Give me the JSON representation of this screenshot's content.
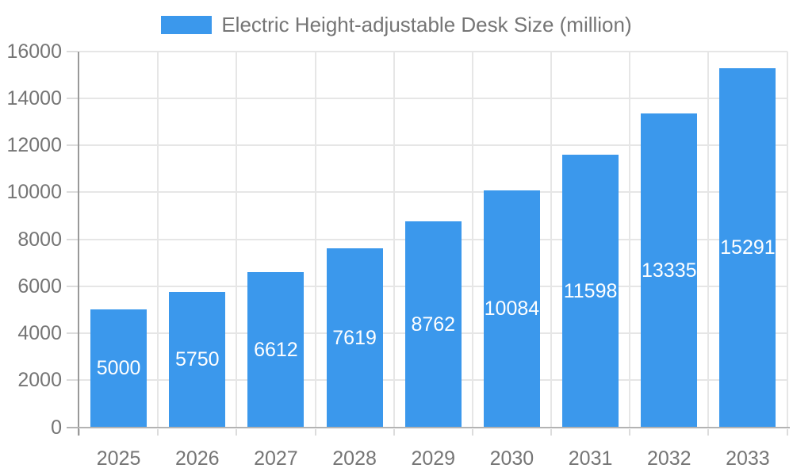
{
  "legend": {
    "label": "Electric Height-adjustable Desk Size (million)"
  },
  "chart_data": {
    "type": "bar",
    "title": "Electric Height-adjustable Desk Size (million)",
    "categories": [
      "2025",
      "2026",
      "2027",
      "2028",
      "2029",
      "2030",
      "2031",
      "2032",
      "2033"
    ],
    "values": [
      5000,
      5750,
      6612,
      7619,
      8762,
      10084,
      11598,
      13335,
      15291
    ],
    "xlabel": "",
    "ylabel": "",
    "ylim": [
      0,
      16000
    ],
    "yticks": [
      0,
      2000,
      4000,
      6000,
      8000,
      10000,
      12000,
      14000,
      16000
    ],
    "grid": true,
    "legend_position": "top",
    "legend_entries": [
      "Electric Height-adjustable Desk Size (million)"
    ],
    "value_labels_inside_bars": true
  },
  "colors": {
    "bar": "#3B98EC",
    "axis_text": "#757575",
    "gridline": "#E6E6E6",
    "tick": "#DCDCDC",
    "y_axis_line": "#999999",
    "x_axis_line": "#B3B3B3",
    "value_label": "#FFFFFF",
    "background": "#FFFFFF"
  }
}
